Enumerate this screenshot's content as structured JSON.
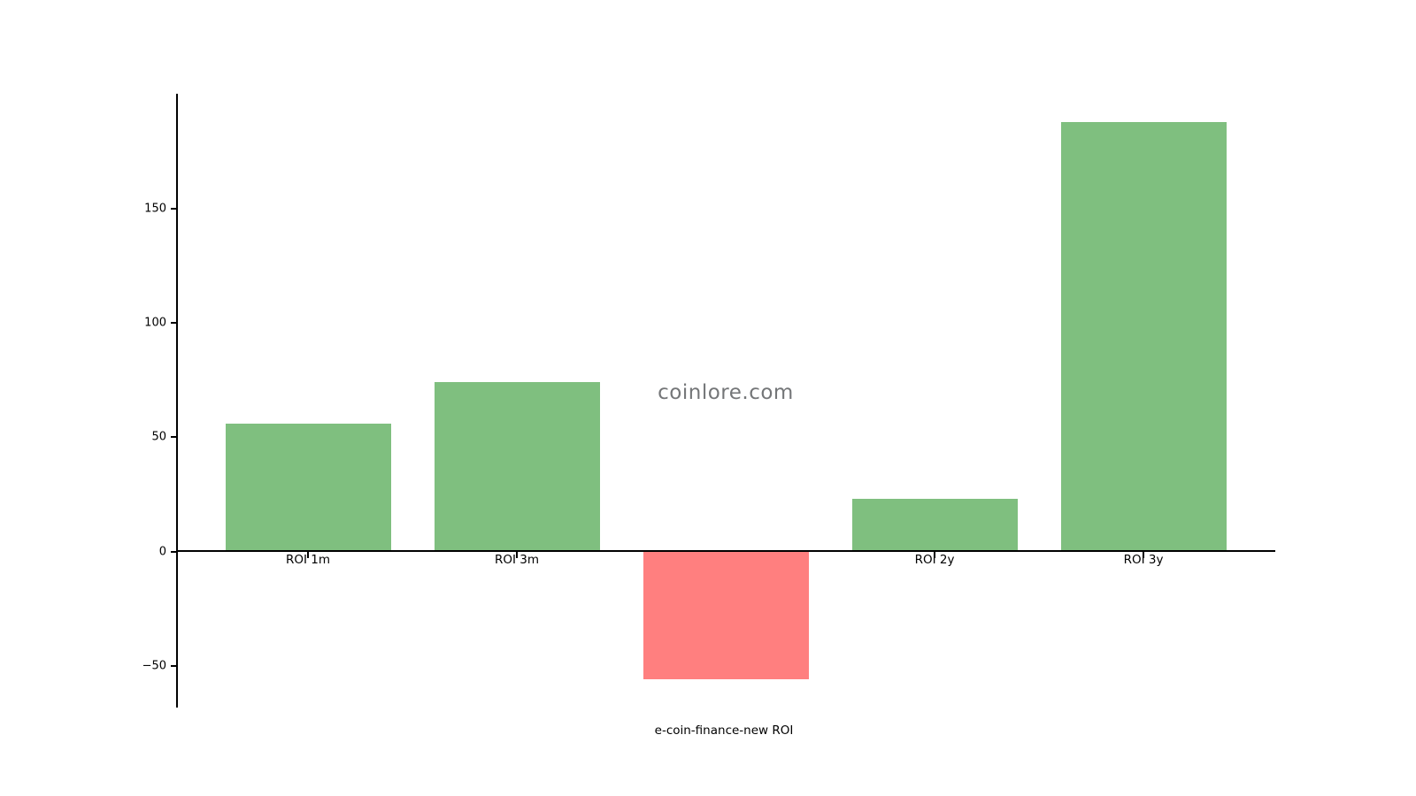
{
  "watermark": "coinlore.com",
  "chart_data": {
    "type": "bar",
    "title": "e-coin-finance-new ROI",
    "categories": [
      "ROI 1m",
      "ROI 3m",
      "",
      "ROI 2y",
      "ROI 3y"
    ],
    "values": [
      56,
      74,
      -56,
      23,
      188
    ],
    "bar_colors": [
      "#7FBF7F",
      "#7FBF7F",
      "#FF7F7F",
      "#7FBF7F",
      "#7FBF7F"
    ],
    "positive_color": "#7FBF7F",
    "negative_color": "#FF7F7F",
    "y_ticks": [
      150,
      100,
      50,
      0,
      -50
    ],
    "ylim": [
      -68.3,
      200.3
    ],
    "xlabel": "",
    "ylabel": "",
    "grid": false,
    "legend": null,
    "axis_color": "#000000",
    "tick_label_color": "#000000",
    "watermark_color": "#747678",
    "layout_hints": {
      "middle_category_label_hidden_behind_negative_bar": true,
      "x_axis_drawn_at_zero": true,
      "only_left_spine_and_zero_line_visible": true
    }
  }
}
